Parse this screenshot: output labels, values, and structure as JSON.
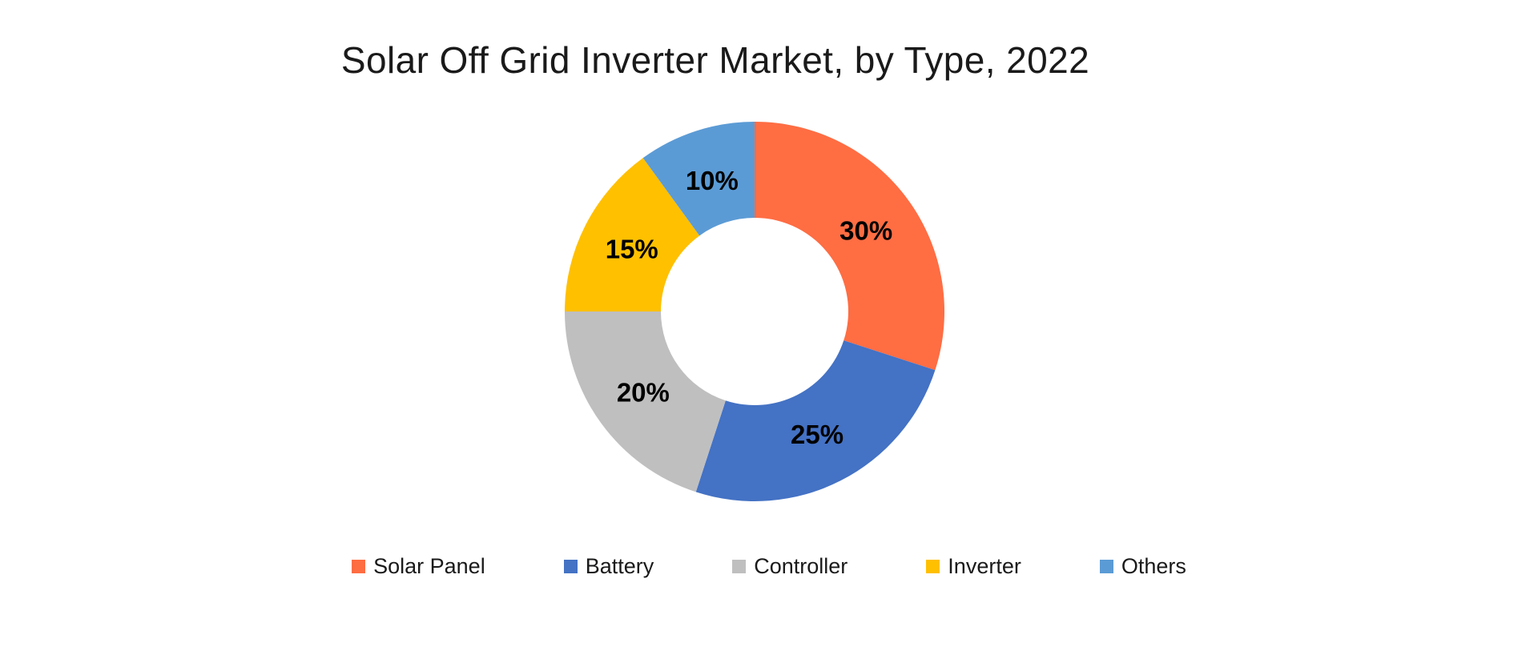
{
  "page": {
    "background_color": "#ffffff"
  },
  "chart_data": {
    "type": "pie",
    "subtype": "donut",
    "title": "Solar Off Grid Inverter Market, by Type, 2022",
    "start_angle_deg": 0,
    "direction": "clockwise",
    "categories": [
      "Solar Panel",
      "Battery",
      "Controller",
      "Inverter",
      "Others"
    ],
    "values": [
      30,
      25,
      20,
      15,
      10
    ],
    "data_labels": [
      "30%",
      "25%",
      "20%",
      "15%",
      "10%"
    ],
    "colors": [
      "#FF6D43",
      "#4472C4",
      "#BFBFBF",
      "#FFC000",
      "#5B9BD5"
    ],
    "data_label_color": "#000000",
    "title_color": "#1a1a1a",
    "legend_position": "bottom",
    "legend_text_color": "#1a1a1a"
  }
}
